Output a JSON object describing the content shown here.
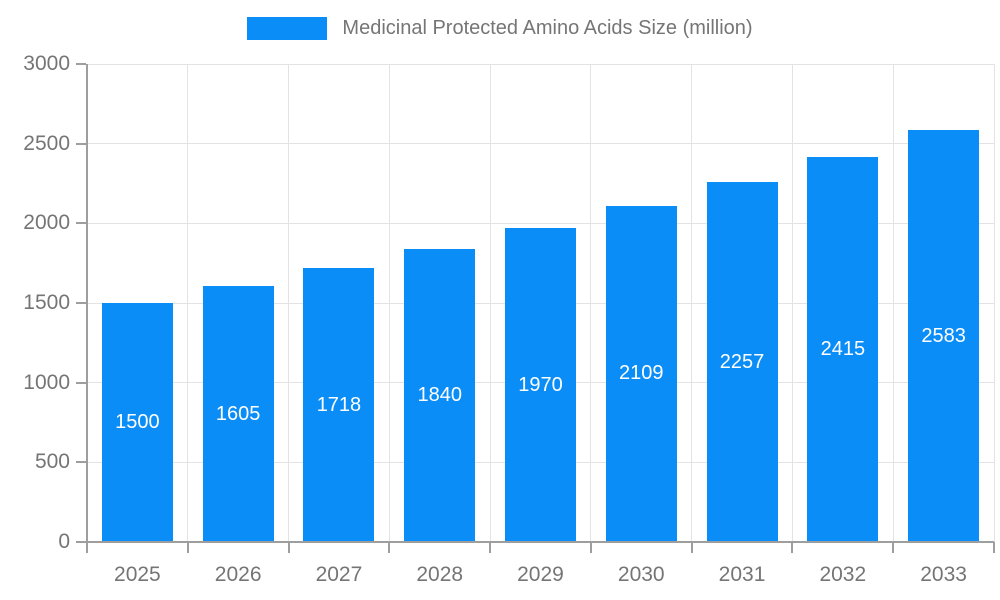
{
  "legend": {
    "swatch_color": "#0b8df8",
    "label": "Medicinal Protected Amino Acids Size (million)"
  },
  "chart_data": {
    "type": "bar",
    "title": "",
    "categories": [
      "2025",
      "2026",
      "2027",
      "2028",
      "2029",
      "2030",
      "2031",
      "2032",
      "2033"
    ],
    "series": [
      {
        "name": "Medicinal Protected Amino Acids Size (million)",
        "values": [
          1500,
          1605,
          1718,
          1840,
          1970,
          2109,
          2257,
          2415,
          2583
        ]
      }
    ],
    "data_labels": [
      "1500",
      "1605",
      "1718",
      "1840",
      "1970",
      "2109",
      "2257",
      "2415",
      "2583"
    ],
    "xlabel": "",
    "ylabel": "",
    "ylim": [
      0,
      3000
    ],
    "ytick_interval": 500,
    "yticks": [
      "0",
      "500",
      "1000",
      "1500",
      "2000",
      "2500",
      "3000"
    ],
    "grid": true,
    "legend_position": "top",
    "bar_color": "#0b8df8",
    "value_label_color": "#ffffff",
    "axis_color": "#9e9e9e",
    "gridline_color": "#e3e3e3",
    "tick_label_color": "#757575"
  }
}
